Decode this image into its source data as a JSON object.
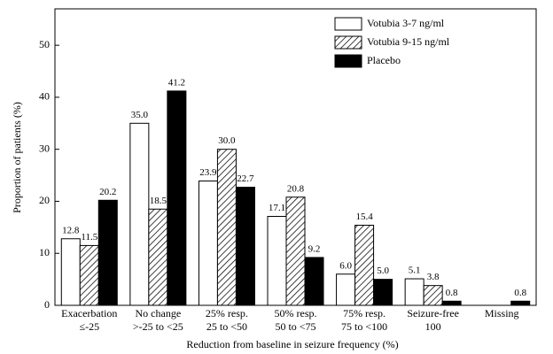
{
  "chart_data": {
    "type": "bar",
    "ylabel": "Proportion of patients (%)",
    "xlabel": "Reduction from baseline in seizure frequency (%)",
    "categories": [
      [
        "Exacerbation",
        "≤-25"
      ],
      [
        "No change",
        ">-25 to <25"
      ],
      [
        "25% resp.",
        "25 to <50"
      ],
      [
        "50% resp.",
        "50 to <75"
      ],
      [
        "75% resp.",
        "75 to <100"
      ],
      [
        "Seizure-free",
        "100"
      ],
      [
        "Missing"
      ]
    ],
    "series": [
      {
        "name": "Votubia 3-7 ng/ml",
        "color": "#ffffff",
        "values": [
          12.8,
          35.0,
          23.9,
          17.1,
          6.0,
          5.1,
          null
        ],
        "value_labels": [
          "12.8",
          "35.0",
          "23.9",
          "17.1",
          "6.0",
          "5.1",
          null
        ]
      },
      {
        "name": "Votubia 9-15 ng/ml",
        "color": "#000000",
        "pattern": "hatch",
        "values": [
          11.5,
          18.5,
          30.0,
          20.8,
          15.4,
          3.8,
          null
        ],
        "value_labels": [
          "11.5",
          "18.5",
          "30.0",
          "20.8",
          "15.4",
          "3.8",
          null
        ]
      },
      {
        "name": "Placebo",
        "color": "#000000",
        "values": [
          20.2,
          41.2,
          22.7,
          9.2,
          5.0,
          0.8,
          0.8
        ],
        "value_labels": [
          "20.2",
          "41.2",
          "22.7",
          "9.2",
          "5.0",
          "0.8",
          "0.8"
        ]
      }
    ],
    "ylim": [
      0,
      57
    ],
    "yticks": [
      0,
      10,
      20,
      30,
      40,
      50
    ],
    "legend": "top-right"
  }
}
